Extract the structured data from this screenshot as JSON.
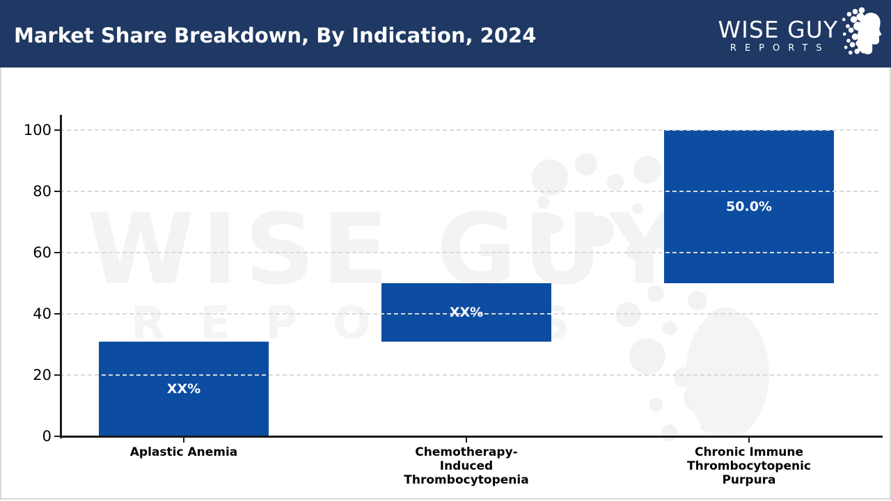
{
  "header": {
    "title": "Market Share Breakdown, By Indication, 2024",
    "bg_color": "#1f3864",
    "logo": {
      "name": "WISE GUY",
      "tagline": "REPORTS"
    }
  },
  "watermark": {
    "line1": "WISE GUY",
    "line2": "REPORTS"
  },
  "chart_data": {
    "type": "bar",
    "variant": "floating-segment-breakdown",
    "title": "Market Share Breakdown, By Indication, 2024",
    "categories": [
      "Aplastic Anemia",
      "Chemotherapy-\nInduced\nThrombocytopenia",
      "Chronic Immune\nThrombocytopenic\nPurpura"
    ],
    "series": [
      {
        "name": "Aplastic Anemia",
        "start": 0,
        "end": 31,
        "label": "XX%"
      },
      {
        "name": "Chemotherapy-Induced Thrombocytopenia",
        "start": 31,
        "end": 50,
        "label": "XX%"
      },
      {
        "name": "Chronic Immune Thrombocytopenic Purpura",
        "start": 50,
        "end": 100,
        "label": "50.0%"
      }
    ],
    "xlabel": "",
    "ylabel": "",
    "yticks": [
      0,
      20,
      40,
      60,
      80,
      100
    ],
    "ylim": [
      0,
      105
    ],
    "bar_color": "#0c4da2",
    "grid": {
      "axis": "y",
      "style": "dashed",
      "color": "#d9d9d9",
      "on_top": true
    },
    "legend": "none"
  }
}
